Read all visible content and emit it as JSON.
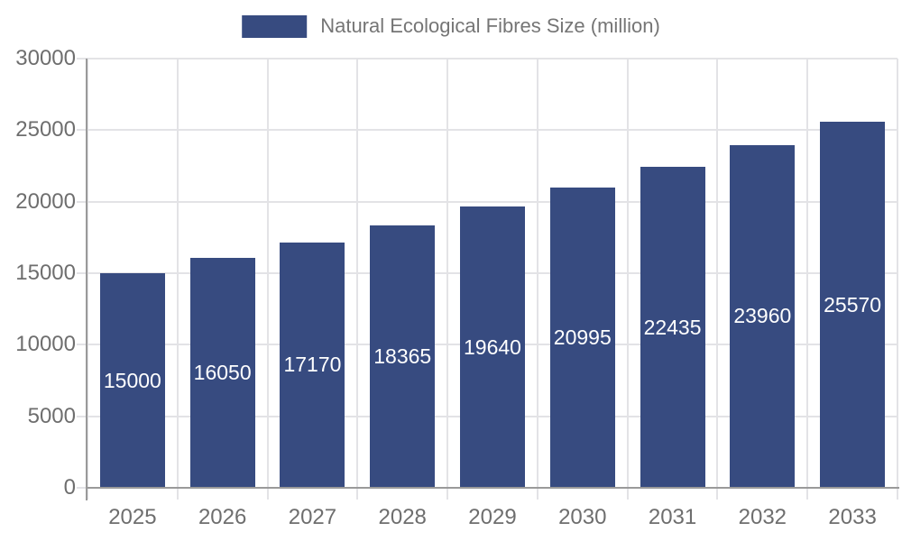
{
  "legend": {
    "label": "Natural Ecological Fibres Size (million)"
  },
  "chart_data": {
    "type": "bar",
    "title": "Natural Ecological Fibres Size (million)",
    "categories": [
      "2025",
      "2026",
      "2027",
      "2028",
      "2029",
      "2030",
      "2031",
      "2032",
      "2033"
    ],
    "series": [
      {
        "name": "Natural Ecological Fibres Size (million)",
        "values": [
          15000,
          16050,
          17170,
          18365,
          19640,
          20995,
          22435,
          23960,
          25570
        ]
      }
    ],
    "xlabel": "",
    "ylabel": "",
    "ylim": [
      0,
      30000
    ],
    "ytick_step": 5000,
    "yticks": [
      0,
      5000,
      10000,
      15000,
      20000,
      25000,
      30000
    ],
    "grid": true,
    "legend_position": "top-center",
    "value_labels": "inside-center",
    "colors": {
      "bar": "#374b80",
      "value_label": "#ffffff",
      "axis_line": "#9a9a9a",
      "gridline": "#e3e3e6",
      "tick_label": "#6e6e6e",
      "legend_text": "#757575",
      "background": "#ffffff"
    }
  }
}
